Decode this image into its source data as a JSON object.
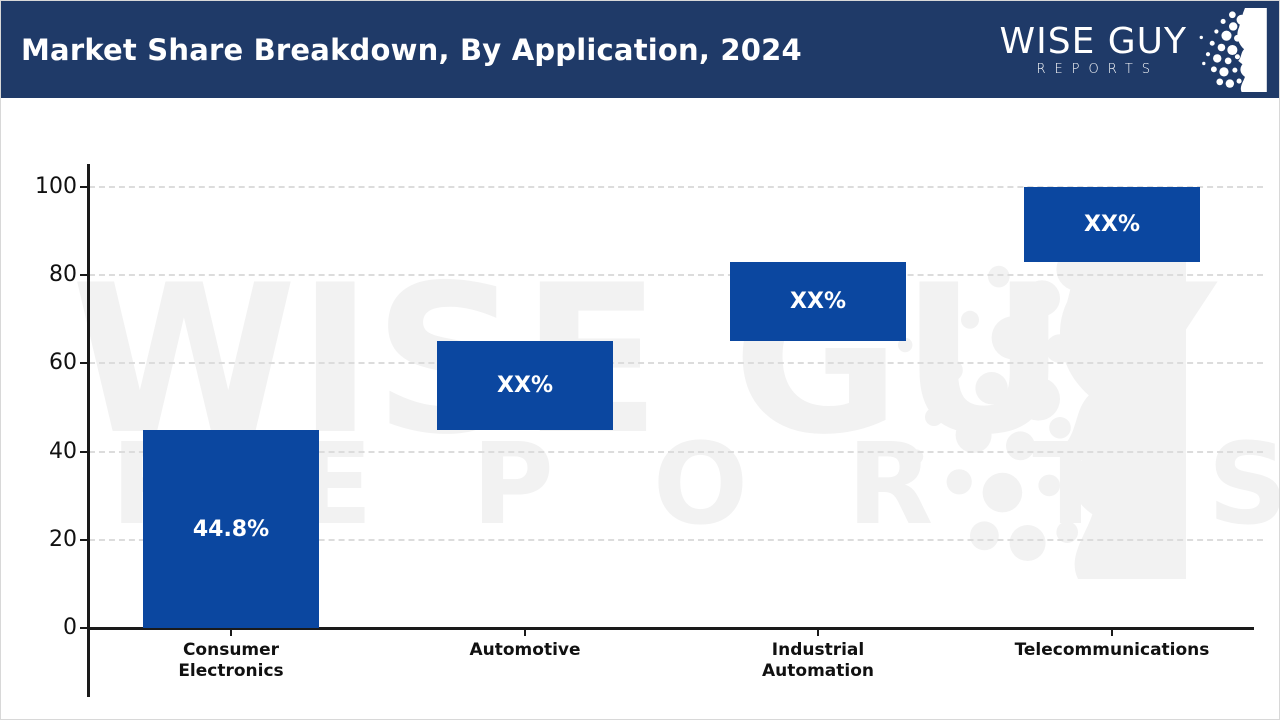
{
  "header": {
    "title": "Market Share Breakdown, By Application, 2024",
    "bg_color": "#1f3a68",
    "logo": {
      "line1": "WISE GUY",
      "line2": "REPORTS"
    }
  },
  "watermark": {
    "line1": "WISE GUY",
    "line2": "R E P O R T S"
  },
  "chart_data": {
    "type": "bar",
    "variant": "waterfall",
    "title": "Market Share Breakdown, By Application, 2024",
    "categories": [
      [
        "Consumer",
        "Electronics"
      ],
      [
        "Automotive"
      ],
      [
        "Industrial",
        "Automation"
      ],
      [
        "Telecommunications"
      ]
    ],
    "segments": [
      {
        "category": "Consumer Electronics",
        "start": 0,
        "end": 44.8,
        "label": "44.8%"
      },
      {
        "category": "Automotive",
        "start": 44.8,
        "end": 65,
        "label": "XX%"
      },
      {
        "category": "Industrial Automation",
        "start": 65,
        "end": 83,
        "label": "XX%"
      },
      {
        "category": "Telecommunications",
        "start": 83,
        "end": 100,
        "label": "XX%"
      }
    ],
    "ylim": [
      0,
      100
    ],
    "yticks": [
      0,
      20,
      40,
      60,
      80,
      100
    ],
    "grid": "dashed-horizontal",
    "legend": "none",
    "bar_color": "#0b47a0",
    "bar_label_color": "#ffffff",
    "axis_color": "#1a1a1a"
  }
}
